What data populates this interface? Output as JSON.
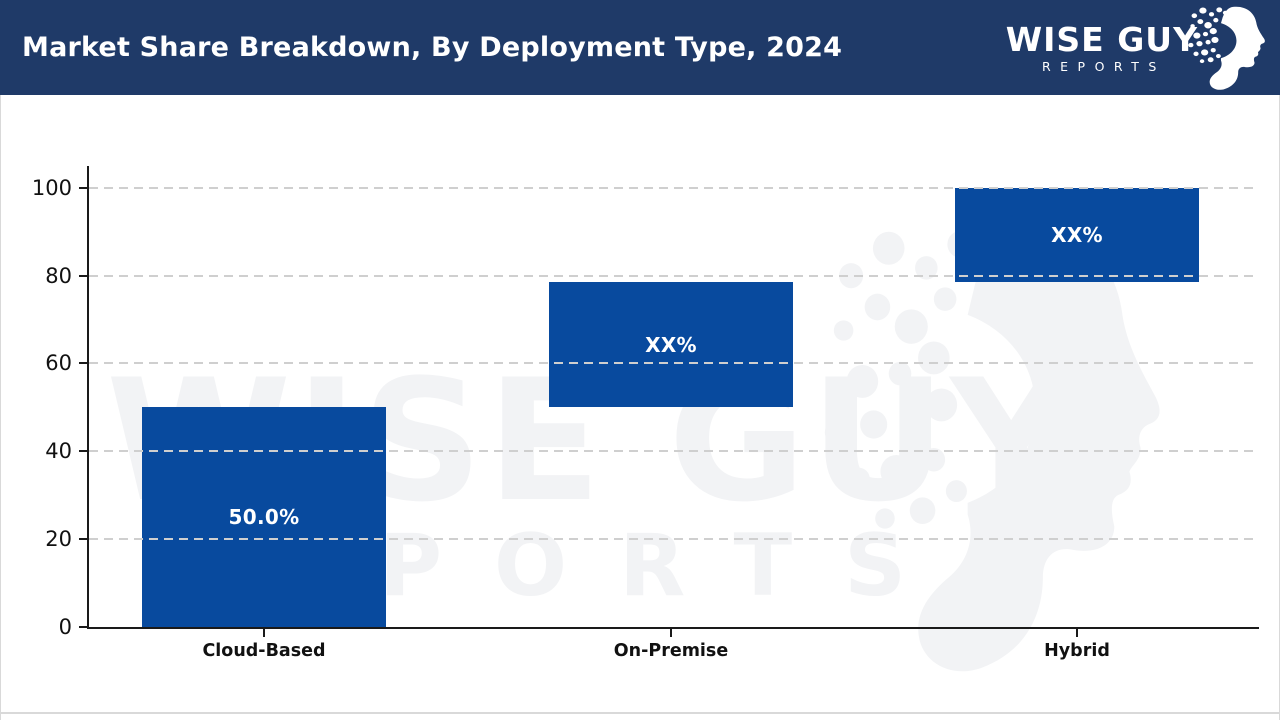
{
  "header": {
    "title": "Market Share Breakdown, By Deployment Type, 2024",
    "logo": {
      "line1": "WISE GUY",
      "line2": "REPORTS"
    }
  },
  "watermark": {
    "line1": "WISE GUY",
    "line2": "REPORTS"
  },
  "colors": {
    "header_bg": "#1f3a68",
    "bar_fill": "#084a9e",
    "bar_label_text": "#ffffff",
    "gridline": "#cfcfcf",
    "axis": "#1a1a1a",
    "watermark": "#f2f3f5",
    "title_text": "#ffffff"
  },
  "chart_data": {
    "type": "bar",
    "subtype": "waterfall",
    "title": "Market Share Breakdown, By Deployment Type, 2024",
    "xlabel": "",
    "ylabel": "",
    "categories": [
      "Cloud-Based",
      "On-Premise",
      "Hybrid"
    ],
    "series": [
      {
        "name": "Market Share (%)",
        "segments": [
          {
            "category": "Cloud-Based",
            "start": 0,
            "end": 50,
            "value": 50.0,
            "label": "50.0%"
          },
          {
            "category": "On-Premise",
            "start": 50,
            "end": 78.5,
            "value": 28.5,
            "label": "XX%"
          },
          {
            "category": "Hybrid",
            "start": 78.5,
            "end": 100,
            "value": 21.5,
            "label": "XX%"
          }
        ]
      }
    ],
    "ylim": [
      0,
      105
    ],
    "yticks": [
      0,
      20,
      40,
      60,
      80,
      100
    ],
    "grid": "horizontal-dashed",
    "legend": "none"
  }
}
